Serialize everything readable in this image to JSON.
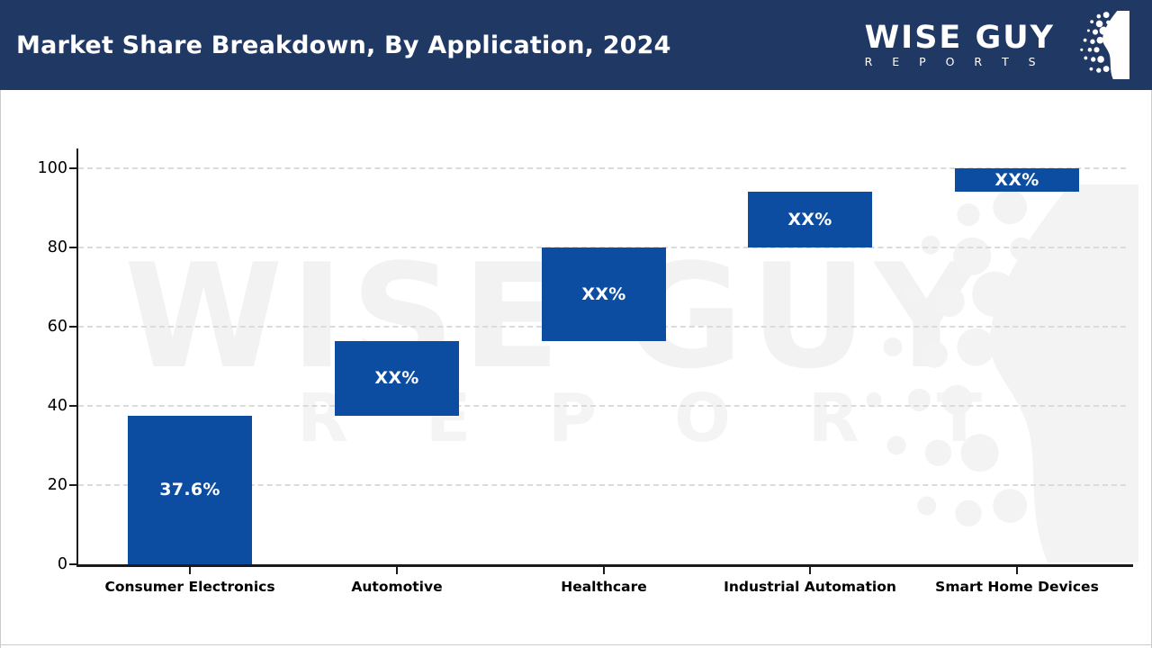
{
  "header": {
    "title": "Market Share Breakdown, By Application, 2024",
    "bg_color": "#203864",
    "logo": {
      "line1": "WISE GUY",
      "line2": "R E P O R T S"
    }
  },
  "watermark": {
    "line1": "WISE GUY",
    "line2": "R E P O R T S"
  },
  "chart_data": {
    "type": "bar",
    "subtype": "waterfall",
    "title": "Market Share Breakdown, By Application, 2024",
    "categories": [
      "Consumer Electronics",
      "Automotive",
      "Healthcare",
      "Industrial Automation",
      "Smart Home Devices"
    ],
    "segments": [
      {
        "category": "Consumer Electronics",
        "start": 0,
        "end": 37.6,
        "label": "37.6%"
      },
      {
        "category": "Automotive",
        "start": 37.6,
        "end": 56.4,
        "label": "XX%"
      },
      {
        "category": "Healthcare",
        "start": 56.4,
        "end": 79.9,
        "label": "XX%"
      },
      {
        "category": "Industrial Automation",
        "start": 79.9,
        "end": 94.0,
        "label": "XX%"
      },
      {
        "category": "Smart Home Devices",
        "start": 94.0,
        "end": 100,
        "label": "XX%"
      }
    ],
    "y_ticks": [
      0,
      20,
      40,
      60,
      80,
      100
    ],
    "ylim": [
      0,
      105
    ],
    "xlabel": "",
    "ylabel": "",
    "grid": "horizontal-dashed",
    "legend": "none",
    "bar_color": "#0C4DA2",
    "bar_label_color": "#FFFFFF",
    "axis_color": "#1a1a1a"
  }
}
